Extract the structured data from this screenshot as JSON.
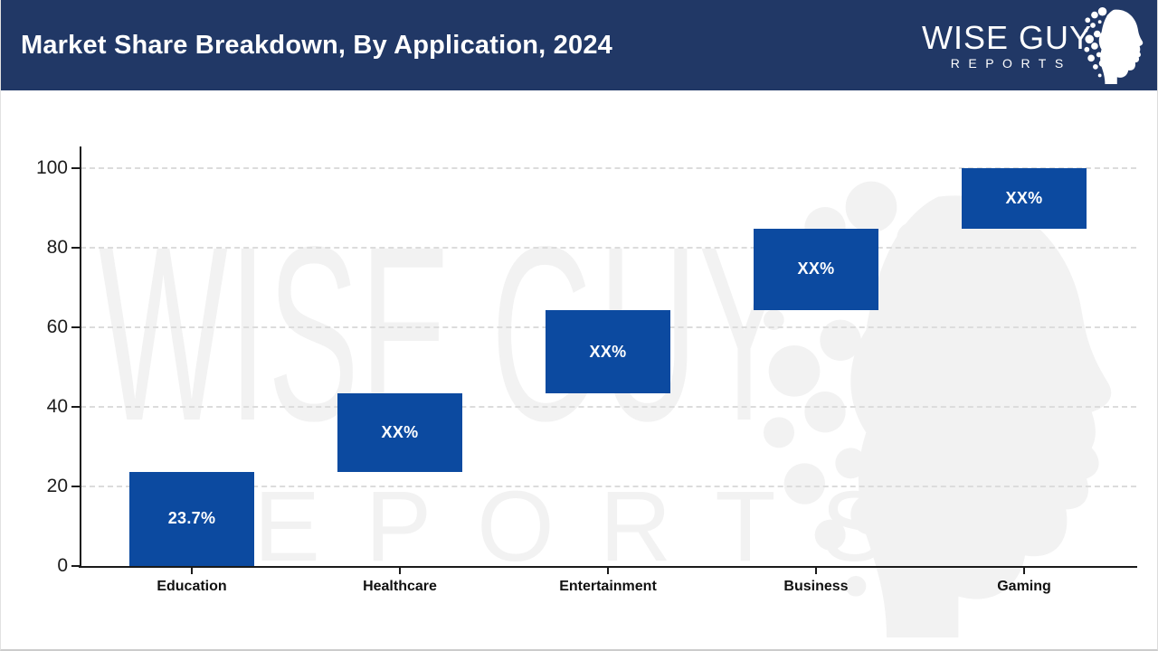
{
  "header": {
    "title": "Market Share Breakdown, By Application, 2024",
    "logo": {
      "line1": "WISE GUY",
      "line2": "REPORTS",
      "icon": "dotted-head-profile-icon"
    }
  },
  "watermark": {
    "line1": "WISE GUY",
    "line2": "REPORTS"
  },
  "chart_data": {
    "type": "bar",
    "subtype": "waterfall-floating-bars",
    "title": "Market Share Breakdown, By Application, 2024",
    "categories": [
      "Education",
      "Healthcare",
      "Entertainment",
      "Business",
      "Gaming"
    ],
    "segments": [
      {
        "category": "Education",
        "start": 0,
        "end": 23.7,
        "label": "23.7%"
      },
      {
        "category": "Healthcare",
        "start": 23.7,
        "end": 43.4,
        "label": "XX%"
      },
      {
        "category": "Entertainment",
        "start": 43.4,
        "end": 64.3,
        "label": "XX%"
      },
      {
        "category": "Business",
        "start": 64.3,
        "end": 84.8,
        "label": "XX%"
      },
      {
        "category": "Gaming",
        "start": 84.8,
        "end": 100,
        "label": "XX%"
      }
    ],
    "xlabel": "",
    "ylabel": "",
    "ylim": [
      0,
      100
    ],
    "yticks": [
      0,
      20,
      40,
      60,
      80,
      100
    ],
    "grid": "horizontal-dashed",
    "legend": "none",
    "bar_color": "#0c4aa0",
    "bar_label_color": "#ffffff",
    "axis_color": "#1a1a1a",
    "gridline_color": "#dcdcdc"
  },
  "colors": {
    "header_bg": "#213866",
    "header_text": "#ffffff",
    "watermark": "#f2f2f2",
    "page_bg": "#ffffff"
  }
}
